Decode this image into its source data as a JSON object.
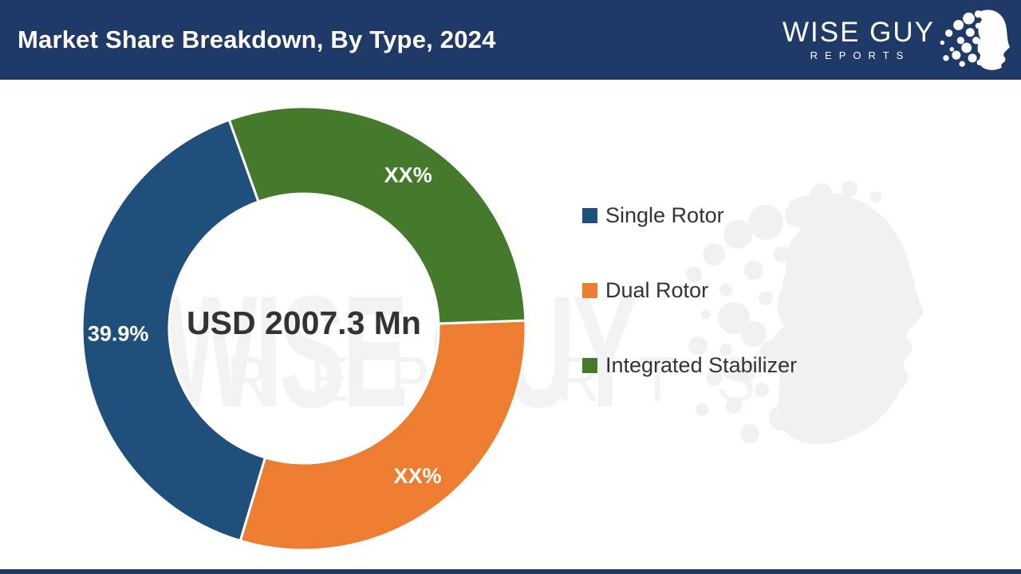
{
  "header": {
    "title": "Market Share Breakdown, By Type, 2024",
    "bg_color": "#203A68",
    "logo": {
      "line1": "WISE GUY",
      "line2": "REPORTS"
    }
  },
  "watermark": {
    "line1": "WISE GUY",
    "line2": "REPORTS"
  },
  "chart_data": {
    "type": "pie",
    "subtype": "donut",
    "title": "Market Share Breakdown, By Type, 2024",
    "center_label": "USD 2007.3 Mn",
    "start_angle_deg": 109.7,
    "counterclock": true,
    "outer_radius_px": 278,
    "inner_radius_px": 169,
    "label_radius_px": 233,
    "legend_position": "right",
    "slices": [
      {
        "name": "Single Rotor",
        "value_pct": 39.9,
        "label": "39.9%",
        "color": "#1F4F7B"
      },
      {
        "name": "Dual Rotor",
        "value_pct": 30.2,
        "label": "XX%",
        "color": "#ED7D31"
      },
      {
        "name": "Integrated Stabilizer",
        "value_pct": 29.9,
        "label": "XX%",
        "color": "#45792B"
      }
    ]
  },
  "footer": {
    "bar_color": "#203A68"
  }
}
